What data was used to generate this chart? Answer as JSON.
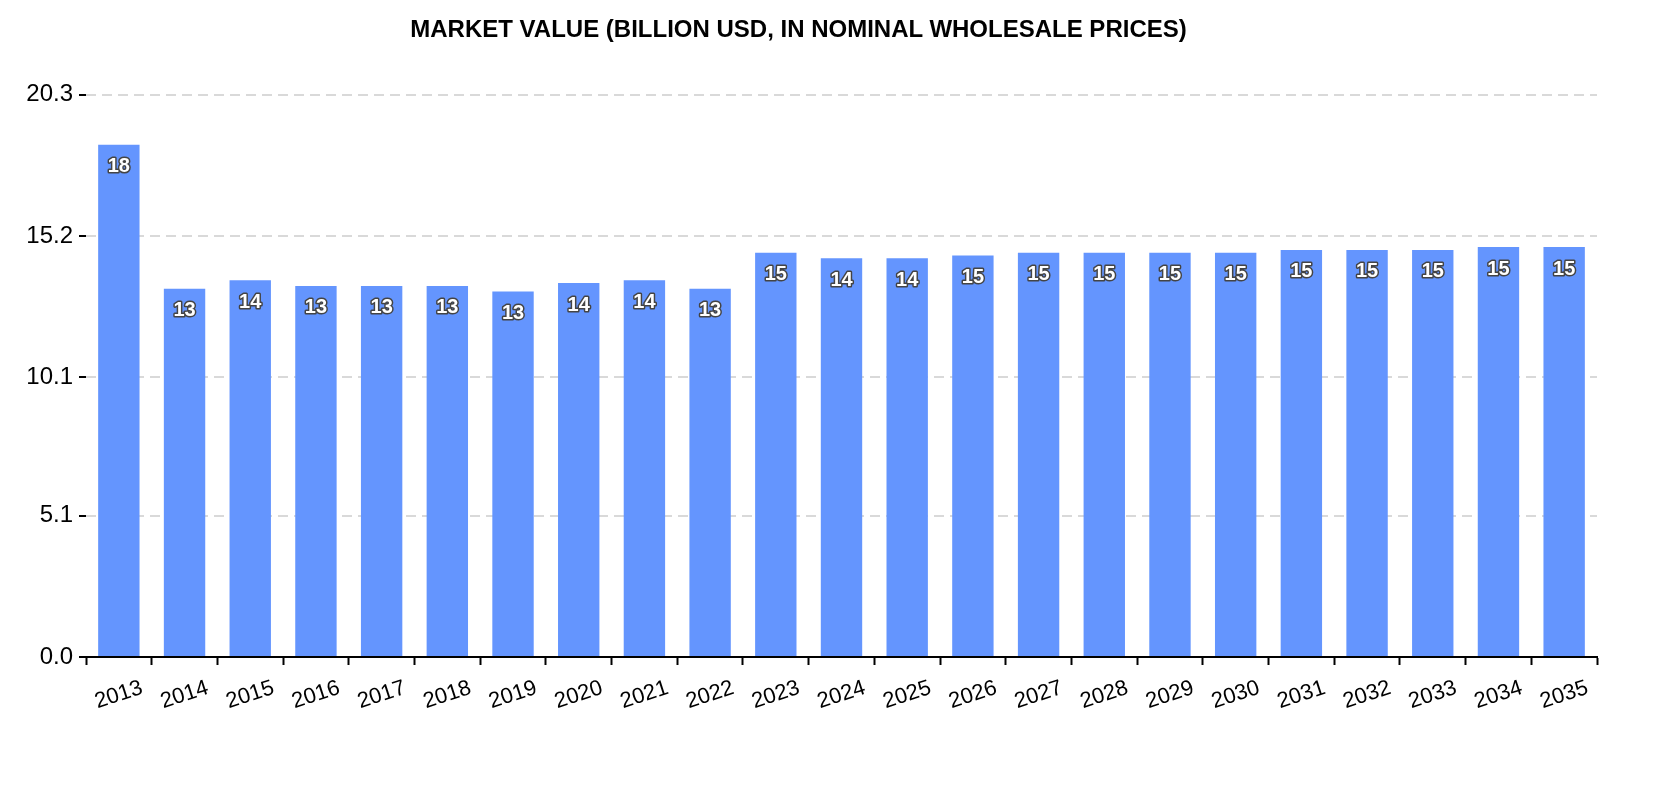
{
  "chart_data": {
    "type": "bar",
    "title": "MARKET VALUE (BILLION USD, IN NOMINAL WHOLESALE PRICES)",
    "categories": [
      "2013",
      "2014",
      "2015",
      "2016",
      "2017",
      "2018",
      "2019",
      "2020",
      "2021",
      "2022",
      "2023",
      "2024",
      "2025",
      "2026",
      "2027",
      "2028",
      "2029",
      "2030",
      "2031",
      "2032",
      "2033",
      "2034",
      "2035"
    ],
    "values": [
      18.5,
      13.3,
      13.6,
      13.4,
      13.4,
      13.4,
      13.2,
      13.5,
      13.6,
      13.3,
      14.6,
      14.4,
      14.4,
      14.5,
      14.6,
      14.6,
      14.6,
      14.6,
      14.7,
      14.7,
      14.7,
      14.8,
      14.8
    ],
    "value_labels": [
      "18",
      "13",
      "14",
      "13",
      "13",
      "13",
      "13",
      "14",
      "14",
      "13",
      "15",
      "14",
      "14",
      "15",
      "15",
      "15",
      "15",
      "15",
      "15",
      "15",
      "15",
      "15",
      "15"
    ],
    "color": "#6495fe",
    "ylim": [
      0,
      20.3
    ],
    "yticks": [
      {
        "value": 0,
        "label": "0.0"
      },
      5.1,
      10.1,
      15.2,
      20.3
    ],
    "grid": "y"
  }
}
